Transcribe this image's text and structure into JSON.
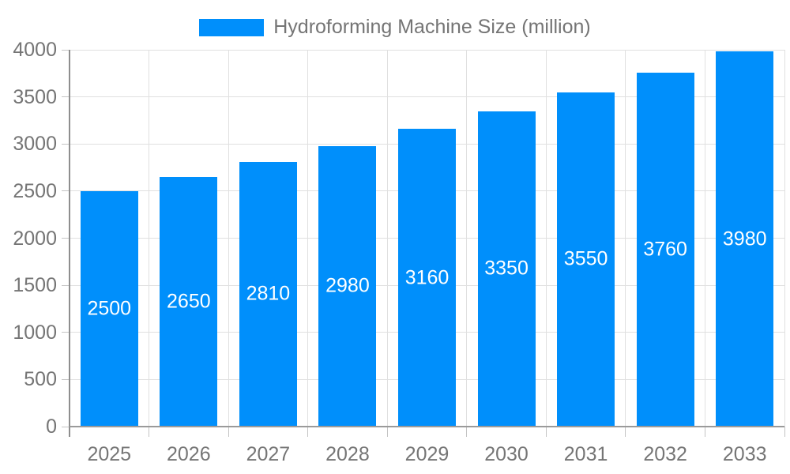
{
  "chart_data": {
    "type": "bar",
    "title": "Hydroforming Machine Size (million)",
    "series_name": "Hydroforming Machine Size (million)",
    "categories": [
      "2025",
      "2026",
      "2027",
      "2028",
      "2029",
      "2030",
      "2031",
      "2032",
      "2033"
    ],
    "values": [
      2500,
      2650,
      2810,
      2980,
      3160,
      3350,
      3550,
      3760,
      3980
    ],
    "xlabel": "",
    "ylabel": "",
    "ylim": [
      0,
      4000
    ],
    "y_ticks": [
      0,
      500,
      1000,
      1500,
      2000,
      2500,
      3000,
      3500,
      4000
    ],
    "grid": true,
    "legend_position": "top",
    "bar_labels_visible": true,
    "colors": {
      "bar": "#008ffb",
      "bar_label_text": "#ffffff",
      "axis_text": "#757575",
      "gridline": "#e0e0e0",
      "axis_line": "#9a9a9a",
      "tick": "#c4c4c4",
      "background": "#ffffff"
    }
  }
}
